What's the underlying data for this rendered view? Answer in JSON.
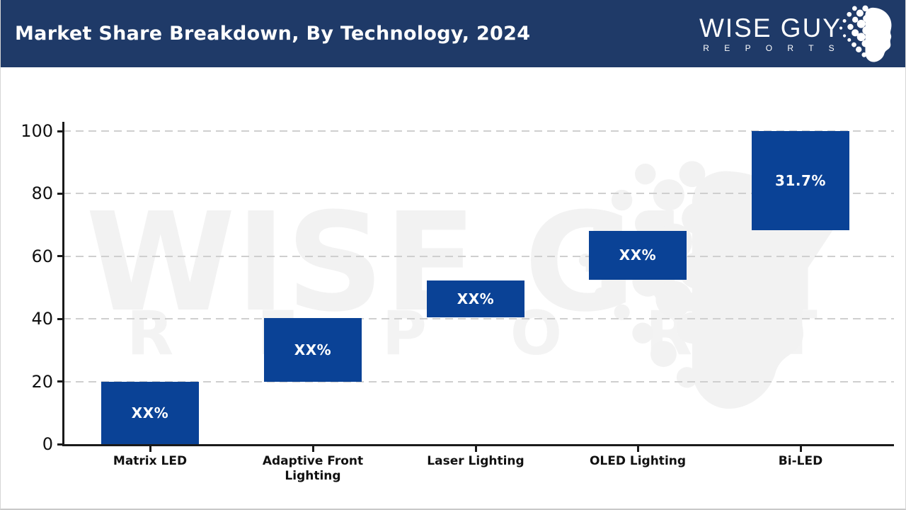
{
  "header": {
    "title": "Market Share Breakdown, By Technology, 2024"
  },
  "logo": {
    "line1": "WISE GUY",
    "line2": "R E P O R T S"
  },
  "watermark": {
    "line1": "WISE GUY",
    "line2": "R E P O R T S"
  },
  "colors": {
    "header_bg": "#1f3a68",
    "bar": "#0a4296",
    "bar_label": "#ffffff",
    "grid": "#cfcfcf",
    "axis": "#1a1a1a",
    "watermark": "#f2f2f2"
  },
  "chart_data": {
    "type": "bar",
    "subtype": "waterfall",
    "title": "Market Share Breakdown, By Technology, 2024",
    "categories": [
      "Matrix LED",
      "Adaptive Front Lighting",
      "Laser Lighting",
      "OLED Lighting",
      "Bi-LED"
    ],
    "segments": [
      {
        "label": "Matrix LED",
        "start": 0,
        "end": 20,
        "display": "XX%"
      },
      {
        "label": "Adaptive Front Lighting",
        "start": 20,
        "end": 40.2,
        "display": "XX%"
      },
      {
        "label": "Laser Lighting",
        "start": 40.4,
        "end": 52.2,
        "display": "XX%"
      },
      {
        "label": "OLED Lighting",
        "start": 52.5,
        "end": 68.1,
        "display": "XX%"
      },
      {
        "label": "Bi-LED",
        "start": 68.3,
        "end": 100,
        "display": "31.7%"
      }
    ],
    "yticks": [
      0,
      20,
      40,
      60,
      80,
      100
    ],
    "ytick_labels": [
      "0",
      "20",
      "40",
      "60",
      "80",
      "100"
    ],
    "ylim": [
      0,
      103
    ],
    "grid": "horizontal-dashed",
    "legend": "none",
    "xlabel": "",
    "ylabel": ""
  }
}
